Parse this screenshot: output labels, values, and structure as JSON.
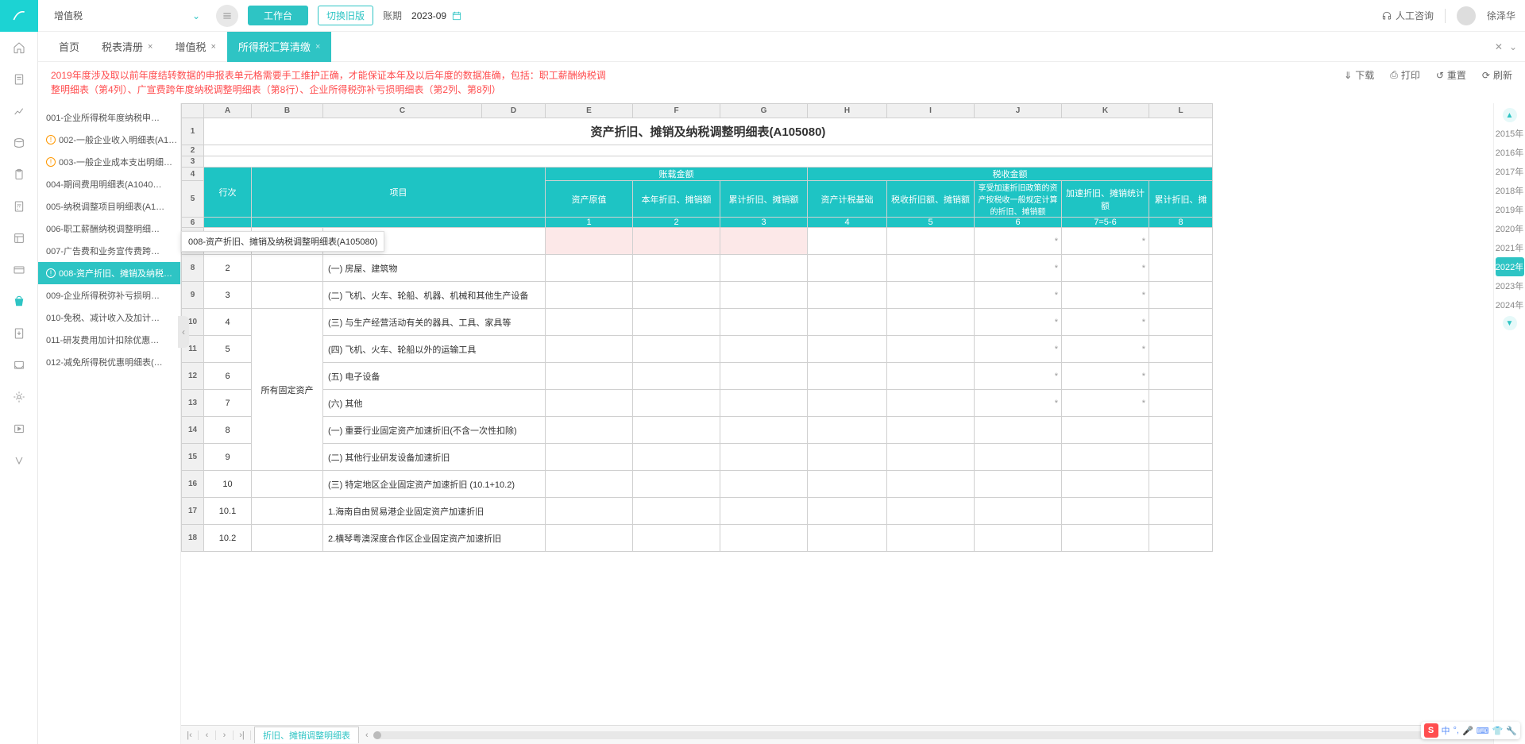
{
  "topbar": {
    "vat_label": "增值税",
    "workbench": "工作台",
    "switch_old": "切换旧版",
    "period_label": "账期",
    "period_value": "2023-09",
    "consult": "人工咨询",
    "user_name": "徐泽华"
  },
  "tabs": [
    {
      "label": "首页",
      "closable": false,
      "active": false
    },
    {
      "label": "税表清册",
      "closable": true,
      "active": false
    },
    {
      "label": "增值税",
      "closable": true,
      "active": false
    },
    {
      "label": "所得税汇算清缴",
      "closable": true,
      "active": true
    }
  ],
  "notice": "2019年度涉及取以前年度结转数据的申报表单元格需要手工维护正确，才能保证本年及以后年度的数据准确，包括：职工薪酬纳税调整明细表（第4列）、广宣费跨年度纳税调整明细表（第8行）、企业所得税弥补亏损明细表（第2列、第8列）",
  "actions": {
    "download": "下载",
    "print": "打印",
    "reset": "重置",
    "refresh": "刷新"
  },
  "side_items": [
    {
      "t": "001-企业所得税年度纳税申…",
      "warn": false
    },
    {
      "t": "002-一般企业收入明细表(A1…",
      "warn": true
    },
    {
      "t": "003-一般企业成本支出明细…",
      "warn": true
    },
    {
      "t": "004-期间费用明细表(A1040…",
      "warn": false
    },
    {
      "t": "005-纳税调整项目明细表(A1…",
      "warn": false
    },
    {
      "t": "006-职工薪酬纳税调整明细…",
      "warn": false
    },
    {
      "t": "007-广告费和业务宣传费跨…",
      "warn": false
    },
    {
      "t": "008-资产折旧、摊销及纳税…",
      "warn": true,
      "active": true
    },
    {
      "t": "009-企业所得税弥补亏损明…",
      "warn": false
    },
    {
      "t": "010-免税、减计收入及加计…",
      "warn": false
    },
    {
      "t": "011-研发费用加计扣除优惠…",
      "warn": false
    },
    {
      "t": "012-减免所得税优惠明细表(…",
      "warn": false
    }
  ],
  "tooltip": "008-资产折旧、摊销及纳税调整明细表(A105080)",
  "sheet": {
    "title": "资产折旧、摊销及纳税调整明细表(A105080)",
    "cols": [
      "A",
      "B",
      "C",
      "D",
      "E",
      "F",
      "G",
      "H",
      "I",
      "J",
      "K",
      "L"
    ],
    "header_rows": {
      "row_label": "行次",
      "item_label": "项目",
      "book_group": "账载金额",
      "tax_group": "税收金额",
      "c1": "资产原值",
      "c2": "本年折旧、摊销额",
      "c3": "累计折旧、摊销额",
      "c4": "资产计税基础",
      "c5": "税收折旧额、摊销额",
      "c6": "享受加速折旧政策的资产按税收一般规定计算的折旧、摊销额",
      "c7": "加速折旧、摊销统计额",
      "c8": "累计折旧、摊",
      "n1": "1",
      "n2": "2",
      "n3": "3",
      "n4": "4",
      "n5": "5",
      "n6": "6",
      "n7": "7=5-6",
      "n8": "8"
    },
    "body": [
      {
        "r": 7,
        "n": "",
        "cat": "",
        "item": "",
        "pink": true,
        "star": true
      },
      {
        "r": 8,
        "n": "2",
        "cat": "",
        "item": "(一) 房屋、建筑物",
        "star": true
      },
      {
        "r": 9,
        "n": "3",
        "cat": "",
        "item": "(二) 飞机、火车、轮船、机器、机械和其他生产设备",
        "star": true
      },
      {
        "r": 10,
        "n": "4",
        "cat": "所有固定资产",
        "item": "(三) 与生产经营活动有关的器具、工具、家具等",
        "star": true
      },
      {
        "r": 11,
        "n": "5",
        "cat": "",
        "item": "(四) 飞机、火车、轮船以外的运输工具",
        "star": true
      },
      {
        "r": 12,
        "n": "6",
        "cat": "",
        "item": "(五) 电子设备",
        "star": true
      },
      {
        "r": 13,
        "n": "7",
        "cat": "",
        "item": "(六) 其他",
        "star": true
      },
      {
        "r": 14,
        "n": "8",
        "cat": "",
        "item": "(一) 重要行业固定资产加速折旧(不含一次性扣除)"
      },
      {
        "r": 15,
        "n": "9",
        "cat": "",
        "item": "(二) 其他行业研发设备加速折旧"
      },
      {
        "r": 16,
        "n": "10",
        "cat": "",
        "item": "(三) 特定地区企业固定资产加速折旧 (10.1+10.2)"
      },
      {
        "r": 17,
        "n": "10.1",
        "cat": "",
        "item": "1.海南自由贸易港企业固定资产加速折旧"
      },
      {
        "r": 18,
        "n": "10.2",
        "cat": "",
        "item": "2.横琴粤澳深度合作区企业固定资产加速折旧"
      }
    ],
    "tab_label": "折旧、摊销调整明细表"
  },
  "years": [
    "2015年",
    "2016年",
    "2017年",
    "2018年",
    "2019年",
    "2020年",
    "2021年",
    "2022年",
    "2023年",
    "2024年"
  ],
  "year_active": "2022年",
  "ime": {
    "logo": "S",
    "mode": "中"
  }
}
